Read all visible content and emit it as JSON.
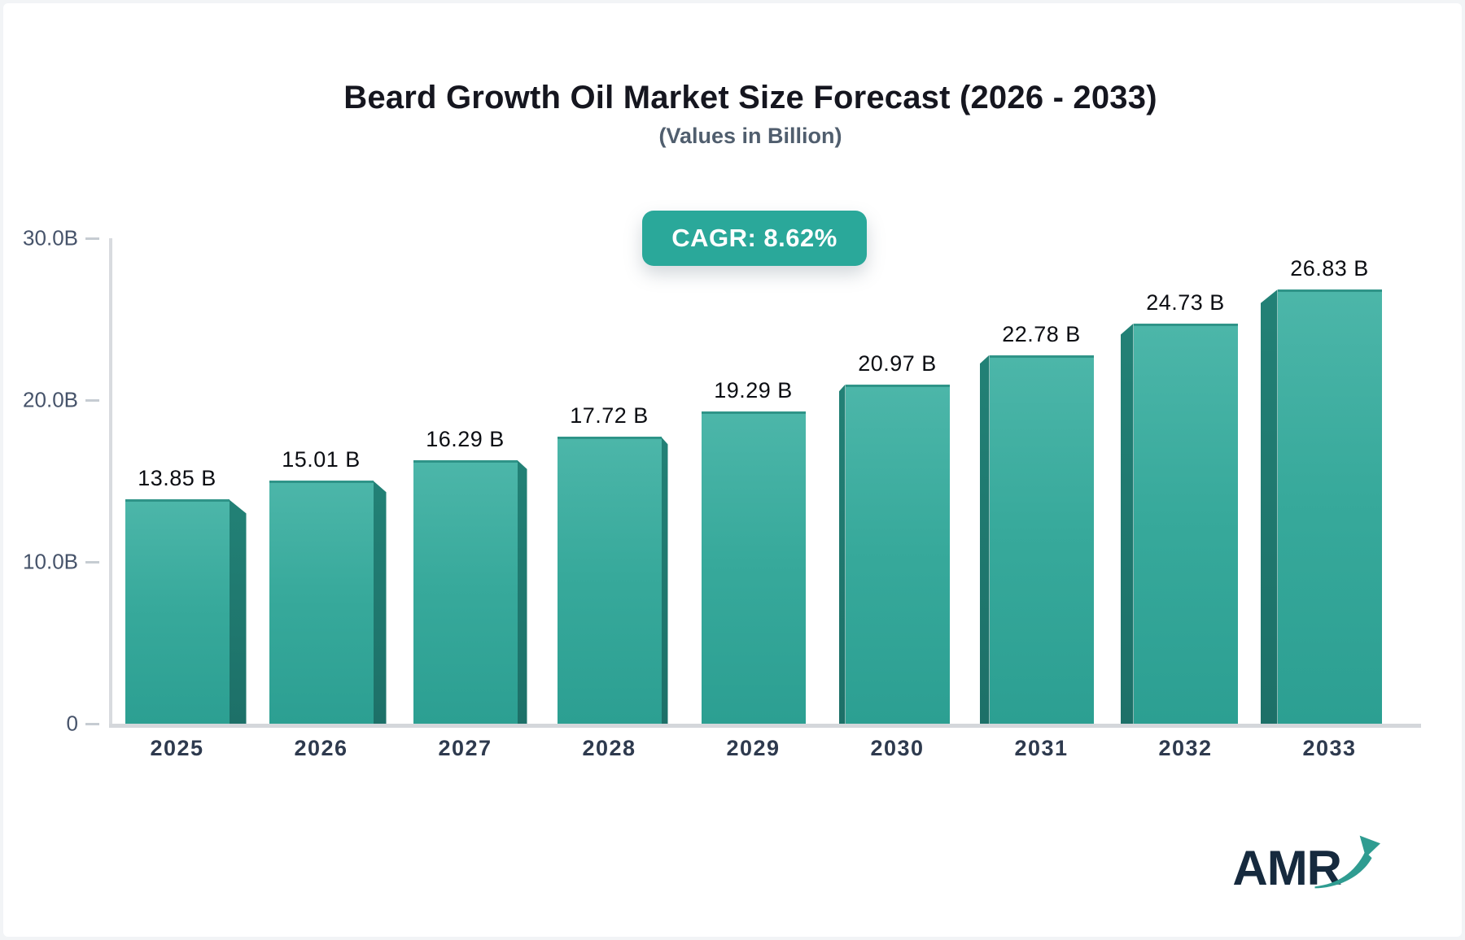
{
  "header": {
    "title": "Beard Growth Oil Market Size Forecast (2026 - 2033)",
    "subtitle": "(Values in Billion)",
    "cagr_badge": "CAGR: 8.62%"
  },
  "chart_data": {
    "type": "bar",
    "title": "Beard Growth Oil Market Size Forecast (2026 - 2033)",
    "subtitle": "(Values in Billion)",
    "unit": "Billion",
    "cagr": "8.62%",
    "categories": [
      "2025",
      "2026",
      "2027",
      "2028",
      "2029",
      "2030",
      "2031",
      "2032",
      "2033"
    ],
    "values": [
      13.85,
      15.01,
      16.29,
      17.72,
      19.29,
      20.97,
      22.78,
      24.73,
      26.83
    ],
    "value_labels": [
      "13.85 B",
      "15.01 B",
      "16.29 B",
      "17.72 B",
      "19.29 B",
      "20.97 B",
      "22.78 B",
      "24.73 B",
      "26.83 B"
    ],
    "xlabel": "",
    "ylabel": "",
    "ylim": [
      0,
      30
    ],
    "y_ticks": [
      {
        "value": 30,
        "label": "30.0B"
      },
      {
        "value": 20,
        "label": "20.0B"
      },
      {
        "value": 10,
        "label": "10.0B"
      },
      {
        "value": 0,
        "label": "0"
      }
    ],
    "grid": false,
    "legend": "none",
    "bar_style": "3d-perspective"
  },
  "colors": {
    "bar_face_top": "#4cb6a9",
    "bar_face_bottom": "#2c9f92",
    "bar_side": "#1e7a70",
    "badge_bg": "#2aa89a",
    "badge_text": "#ffffff",
    "axis_line": "#d6d9dd",
    "tick_text": "#46536a",
    "title_text": "#15161f",
    "subtitle_text": "#505e6e",
    "logo_text": "#162a3e",
    "logo_arrow": "#2f9c91"
  },
  "logo": {
    "text": "AMR",
    "icon": "trend-arrow-icon"
  }
}
